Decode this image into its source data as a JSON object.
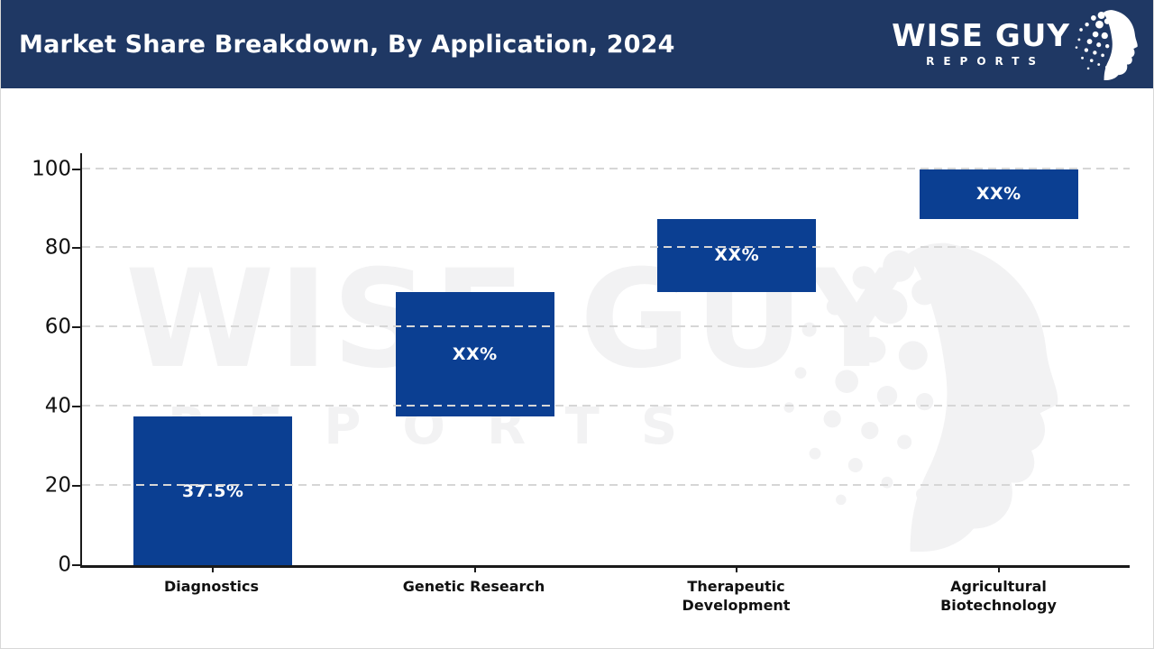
{
  "header": {
    "title": "Market Share Breakdown, By Application, 2024",
    "logo": {
      "wordmark": "WISE GUY",
      "subtext": "REPORTS",
      "icon": "dotted-face-profile"
    }
  },
  "watermark": {
    "line1": "WISE GUY",
    "line2": "REPORTS",
    "icon": "dotted-face-profile"
  },
  "colors": {
    "header_bg": "#1f3864",
    "bar": "#0b3f92",
    "grid": "#d6d6d6",
    "axis": "#1a1a1a",
    "bar_label": "#ffffff",
    "watermark": "#f2f2f3"
  },
  "chart_data": {
    "type": "bar",
    "subtype": "waterfall",
    "title": "Market Share Breakdown, By Application, 2024",
    "xlabel": "",
    "ylabel": "",
    "categories": [
      "Diagnostics",
      "Genetic Research",
      "Therapeutic\nDevelopment",
      "Agricultural\nBiotechnology"
    ],
    "bars": [
      {
        "category": "Diagnostics",
        "start": 0,
        "end": 37.5,
        "label": "37.5%"
      },
      {
        "category": "Genetic Research",
        "start": 37.5,
        "end": 69,
        "label": "XX%"
      },
      {
        "category": "Therapeutic Development",
        "start": 69,
        "end": 87.5,
        "label": "XX%"
      },
      {
        "category": "Agricultural Biotechnology",
        "start": 87.5,
        "end": 100,
        "label": "XX%"
      }
    ],
    "yticks": [
      0,
      20,
      40,
      60,
      80,
      100
    ],
    "ylim": [
      0,
      104
    ],
    "grid": "dashed-horizontal",
    "legend": "none"
  }
}
